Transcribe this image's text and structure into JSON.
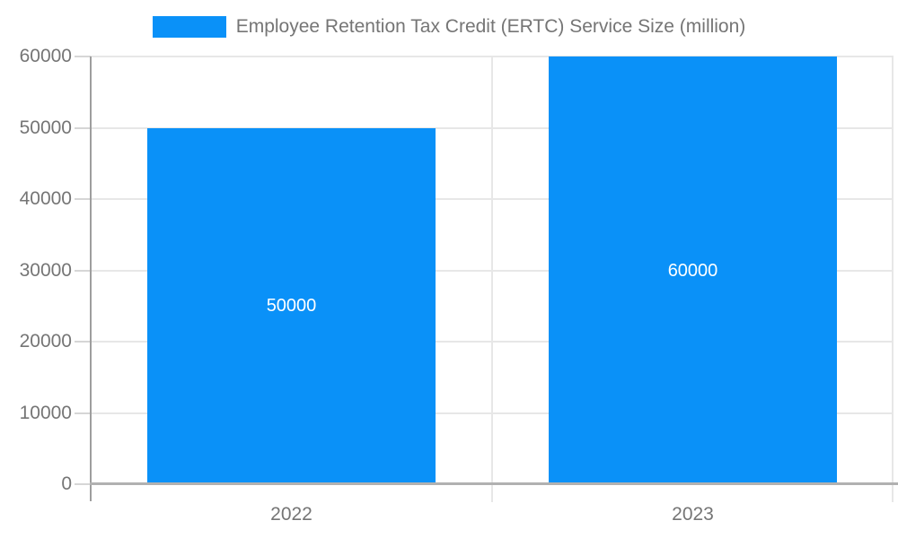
{
  "chart_data": {
    "type": "bar",
    "title": "Employee Retention Tax Credit (ERTC) Service Size (million)",
    "legend": {
      "label": "Employee Retention Tax Credit (ERTC) Service Size (million)",
      "position": "top"
    },
    "categories": [
      "2022",
      "2023"
    ],
    "series": [
      {
        "name": "Employee Retention Tax Credit (ERTC) Service Size (million)",
        "values": [
          50000,
          60000
        ]
      }
    ],
    "data_labels": [
      "50000",
      "60000"
    ],
    "yticks": [
      0,
      10000,
      20000,
      30000,
      40000,
      50000,
      60000
    ],
    "ytick_labels": [
      "0",
      "10000",
      "20000",
      "30000",
      "40000",
      "50000",
      "60000"
    ],
    "ylim": [
      0,
      60000
    ],
    "grid": true,
    "colors": {
      "bar": "#0a91f8",
      "text": "#757575",
      "grid": "#e7e7e7",
      "y_axis_line": "#9e9e9e",
      "x_axis_line": "#b1b1b1",
      "tick": "#d6d6d6",
      "data_label": "#ffffff",
      "background": "#ffffff"
    }
  }
}
